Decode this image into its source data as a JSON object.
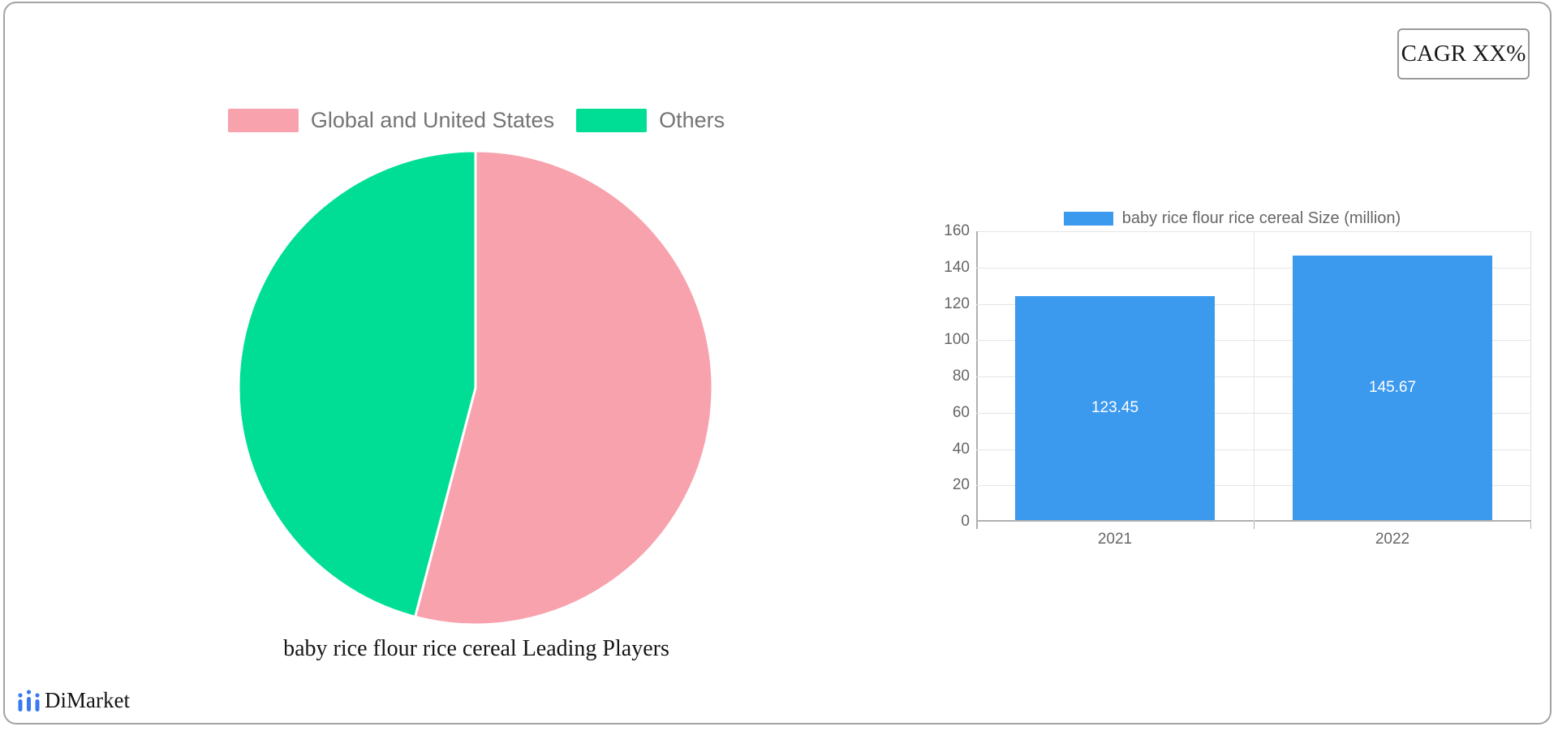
{
  "page": {
    "cagr_badge": "CAGR XX%",
    "brand_name": "DiMarket"
  },
  "colors": {
    "pie_pink": "#f7a2ac",
    "pie_green": "#00de95",
    "bar_blue": "#3b99ee",
    "legend_text_gray": "#757575",
    "axis_text_gray": "#666666",
    "brand_blue": "#3a7af0"
  },
  "chart_data": [
    {
      "type": "pie",
      "title": "baby rice flour rice cereal Leading Players",
      "series": [
        {
          "name": "Global and United States",
          "value": 54.1,
          "color": "#f7a2ac"
        },
        {
          "name": "Others",
          "value": 45.9,
          "color": "#00de95"
        }
      ],
      "legend_position": "top",
      "start_angle_deg": 0,
      "direction": "clockwise",
      "slice_border_color": "#ffffff"
    },
    {
      "type": "bar",
      "legend_label": "baby rice flour rice cereal Size (million)",
      "legend_position": "top",
      "categories": [
        "2021",
        "2022"
      ],
      "values": [
        123.45,
        145.67
      ],
      "value_labels": [
        "123.45",
        "145.67"
      ],
      "value_label_color": "#ffffff",
      "bar_color": "#3b99ee",
      "xlabel": "",
      "ylabel": "",
      "ylim": [
        0,
        160
      ],
      "ytick_step": 20,
      "yticks": [
        0,
        20,
        40,
        60,
        80,
        100,
        120,
        140,
        160
      ],
      "grid": true
    }
  ]
}
